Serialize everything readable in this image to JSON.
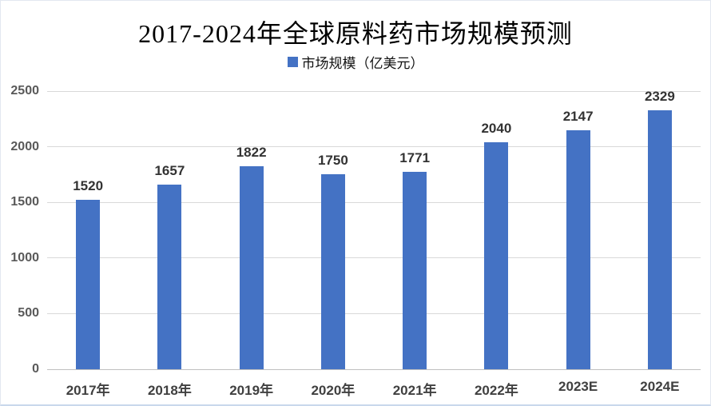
{
  "chart": {
    "title": "2017-2024年全球原料药市场规模预测",
    "legend": {
      "label": "市场规模（亿美元）",
      "marker_color": "#4472C4"
    }
  },
  "chart_data": {
    "type": "bar",
    "title": "2017-2024年全球原料药市场规模预测",
    "series_name": "市场规模（亿美元）",
    "categories": [
      "2017年",
      "2018年",
      "2019年",
      "2020年",
      "2021年",
      "2022年",
      "2023E",
      "2024E"
    ],
    "values": [
      1520,
      1657,
      1822,
      1750,
      1771,
      2040,
      2147,
      2329
    ],
    "xlabel": "",
    "ylabel": "",
    "ylim": [
      0,
      2500
    ],
    "yticks": [
      0,
      500,
      1000,
      1500,
      2000,
      2500
    ],
    "grid": true,
    "legend_position": "top",
    "bar_color": "#4472C4",
    "gridline_color": "#d9d9d9",
    "axis_line_color": "#bfbfbf",
    "value_label_color": "#333333",
    "tick_label_color": "#595959"
  }
}
